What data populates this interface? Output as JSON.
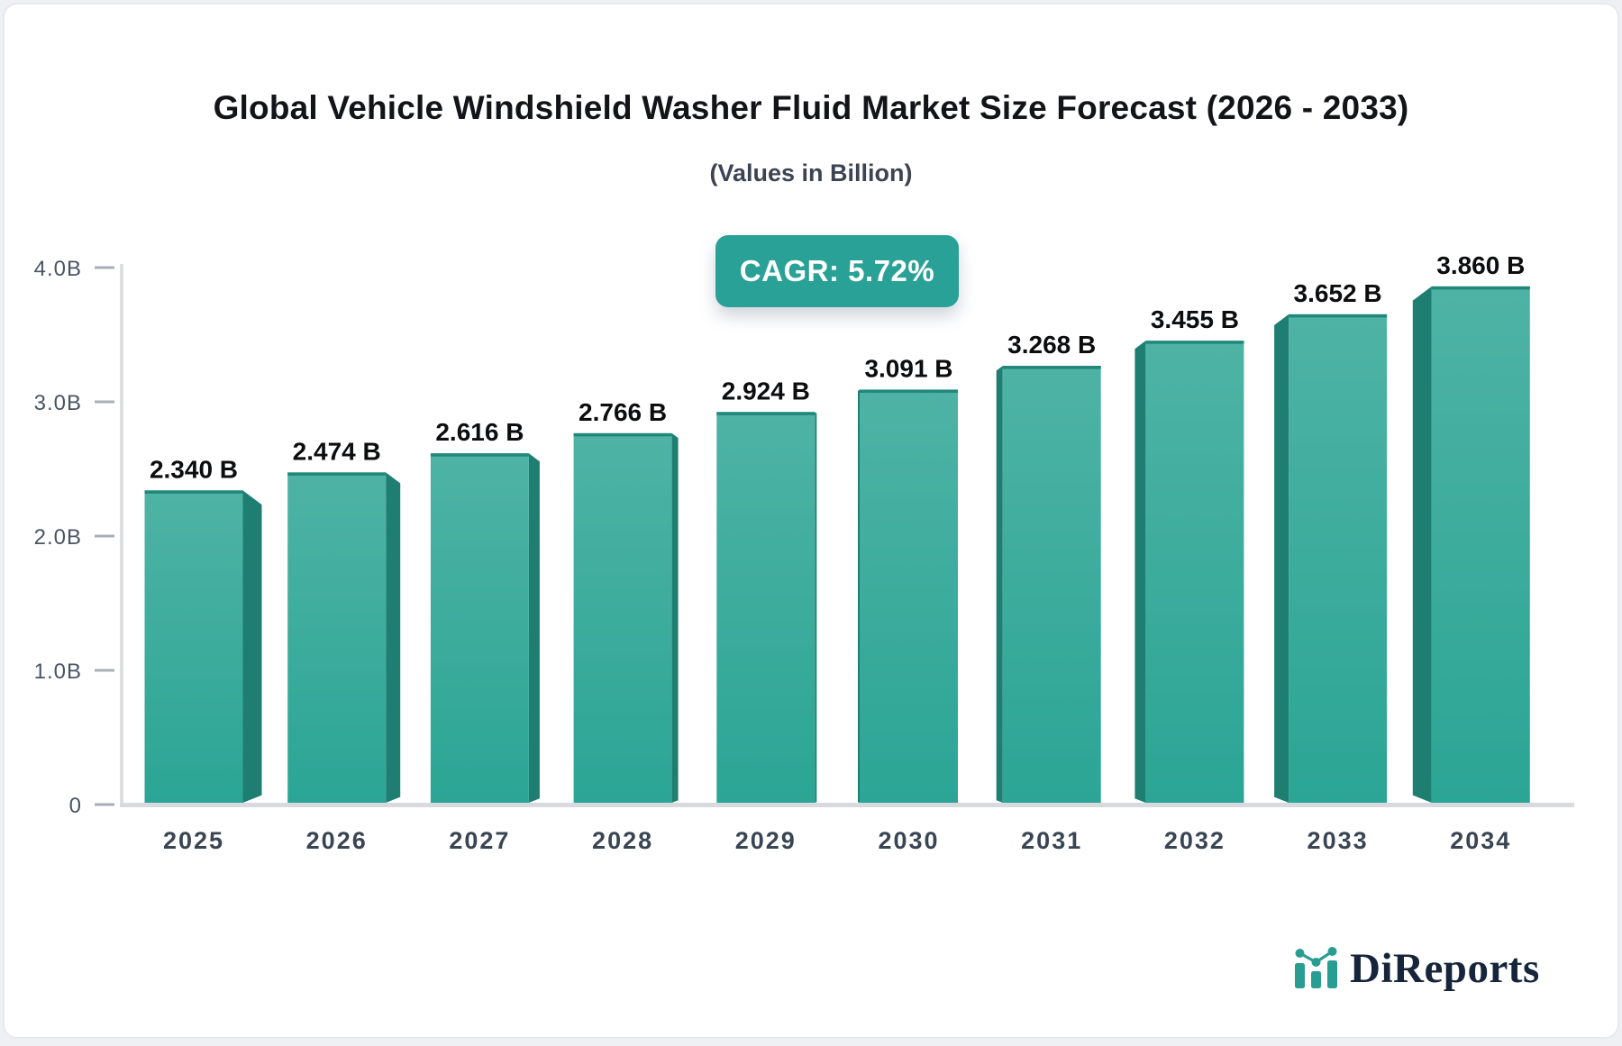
{
  "title": "Global Vehicle Windshield Washer Fluid Market Size Forecast (2026 - 2033)",
  "subtitle": "(Values in Billion)",
  "badge": {
    "label": "CAGR: 5.72%"
  },
  "logo": {
    "name": "DiReports"
  },
  "colors": {
    "bar_top": "#4eb3a5",
    "bar_bottom": "#2ba595",
    "bar_side": "#1e7e71",
    "bar_top_edge": "#218779",
    "badge_bg": "#2aa197",
    "axis_line": "#d8dadf",
    "tick": "#a8aeb9",
    "y_label": "#4a5465",
    "x_label": "#3a4554",
    "value_label": "#0c0d0f",
    "logo_text": "#16243c",
    "logo_icon": "#2a9d93"
  },
  "chart_data": {
    "type": "bar",
    "title": "Global Vehicle Windshield Washer Fluid Market Size Forecast (2026 - 2033)",
    "subtitle": "(Values in Billion)",
    "categories": [
      "2025",
      "2026",
      "2027",
      "2028",
      "2029",
      "2030",
      "2031",
      "2032",
      "2033",
      "2034"
    ],
    "values": [
      2.34,
      2.474,
      2.616,
      2.766,
      2.924,
      3.091,
      3.268,
      3.455,
      3.652,
      3.86
    ],
    "value_labels": [
      "2.340 B",
      "2.474 B",
      "2.616 B",
      "2.766 B",
      "2.924 B",
      "3.091 B",
      "3.268 B",
      "3.455 B",
      "3.652 B",
      "3.860 B"
    ],
    "y_ticks": [
      {
        "value": 4.0,
        "label": "4.0B"
      },
      {
        "value": 3.0,
        "label": "3.0B"
      },
      {
        "value": 2.0,
        "label": "2.0B"
      },
      {
        "value": 1.0,
        "label": "1.0B"
      },
      {
        "value": 0,
        "label": "0"
      }
    ],
    "ylim": [
      0,
      4.0
    ],
    "xlabel": "",
    "ylabel": "",
    "grid": false,
    "legend": null,
    "annotations": [
      "CAGR: 5.72%"
    ],
    "style": "3d-perspective-teal-bars"
  }
}
